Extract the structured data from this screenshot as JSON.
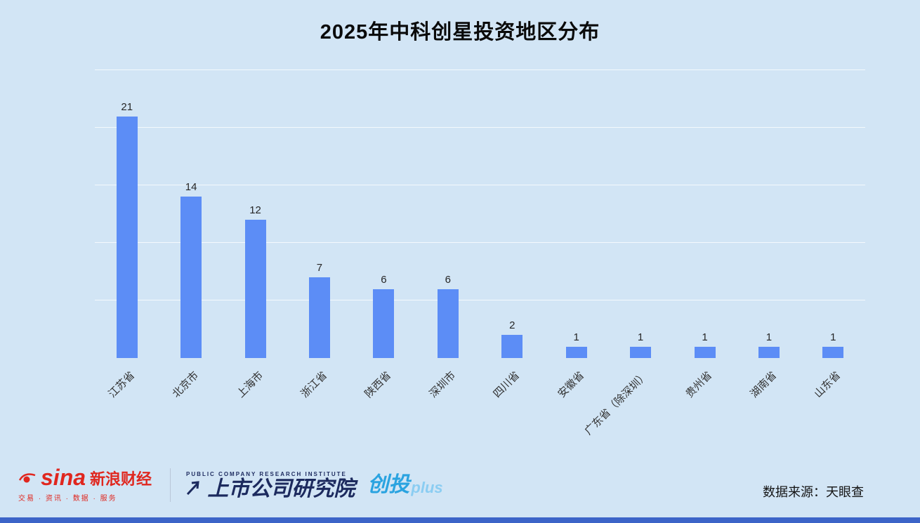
{
  "title": "2025年中科创星投资地区分布",
  "chart_data": {
    "type": "bar",
    "categories": [
      "江苏省",
      "北京市",
      "上海市",
      "浙江省",
      "陕西省",
      "深圳市",
      "四川省",
      "安徽省",
      "广东省（除深圳）",
      "贵州省",
      "湖南省",
      "山东省"
    ],
    "values": [
      21,
      14,
      12,
      7,
      6,
      6,
      2,
      1,
      1,
      1,
      1,
      1
    ],
    "title": "2025年中科创星投资地区分布",
    "xlabel": "",
    "ylabel": "",
    "ylim": [
      0,
      25
    ],
    "tick_step": 5,
    "grid": true,
    "legend": "none",
    "bar_color": "#5c8df6",
    "value_label_color": "#262626"
  },
  "footer": {
    "sina_word": "sina",
    "sina_brand": "新浪财经",
    "sina_tagline": "交易 · 资讯 · 数据 · 服务",
    "institute_en": "PUBLIC COMPANY RESEARCH INSTITUTE",
    "institute_cn": "上市公司研究院",
    "plus_cn": "创投",
    "plus_en": "plus",
    "source": "数据来源：天眼查"
  },
  "colors": {
    "background": "#d2e5f5",
    "bar": "#5c8df6",
    "sina_red": "#e0271f",
    "institute_navy": "#1c2a5e",
    "plus_blue": "#2aa3e0",
    "bottom_strip": "#3c64c8"
  }
}
